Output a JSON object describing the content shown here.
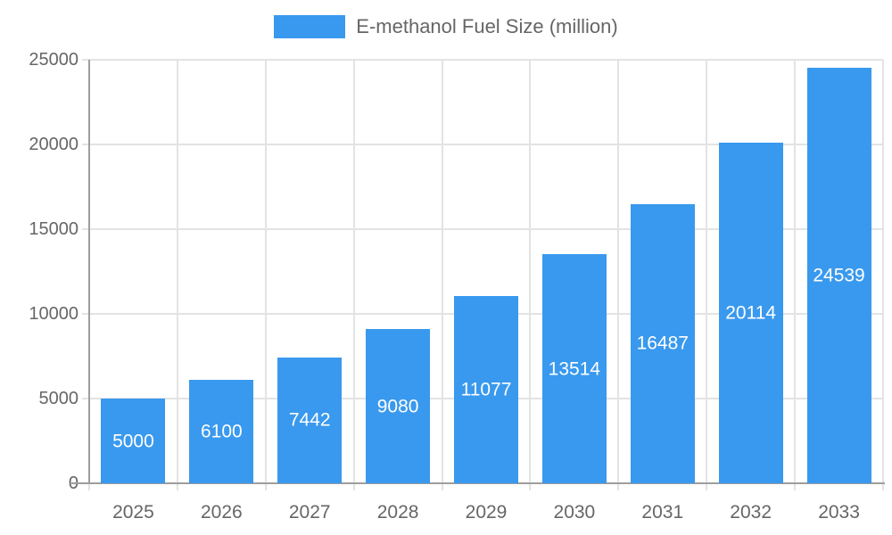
{
  "chart_data": {
    "type": "bar",
    "title": "",
    "legend": {
      "label": "E-methanol Fuel Size (million)",
      "position": "top"
    },
    "categories": [
      "2025",
      "2026",
      "2027",
      "2028",
      "2029",
      "2030",
      "2031",
      "2032",
      "2033"
    ],
    "series": [
      {
        "name": "E-methanol Fuel Size (million)",
        "values": [
          5000,
          6100,
          7442,
          9080,
          11077,
          13514,
          16487,
          20114,
          24539
        ]
      }
    ],
    "value_labels_shown": true,
    "xlabel": "",
    "ylabel": "",
    "ylim": [
      0,
      25000
    ],
    "yticks": [
      0,
      5000,
      10000,
      15000,
      20000,
      25000
    ],
    "grid": "both",
    "colors": {
      "bar": "#3999ee",
      "value_label": "#ffffff",
      "axis": "#9e9e9e",
      "grid": "#e3e3e3",
      "tick_label": "#666666",
      "legend_label": "#666666",
      "background": "#ffffff"
    }
  }
}
